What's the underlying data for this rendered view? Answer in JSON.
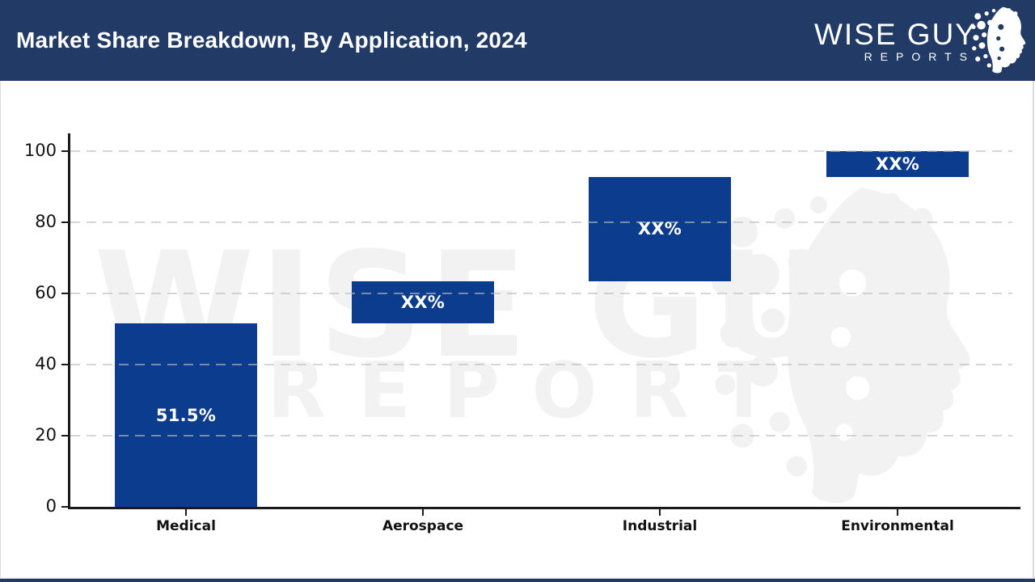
{
  "header": {
    "title": "Market Share Breakdown, By Application, 2024",
    "logo": {
      "brand_line1": "WISE GUY",
      "brand_line2": "REPORTS"
    }
  },
  "watermark": {
    "line1": "WISE GUY",
    "line2": "REPORTS"
  },
  "colors": {
    "header_bg": "#213a66",
    "bar": "#0c3c8d",
    "bar_label": "#ffffff",
    "axis": "#1a1a1a",
    "gridline": "#c4c4c4",
    "watermark": "#f2f2f2"
  },
  "chart_data": {
    "type": "bar",
    "variant": "waterfall",
    "title": "Market Share Breakdown, By Application, 2024",
    "categories": [
      "Medical",
      "Aerospace",
      "Industrial",
      "Environmental"
    ],
    "segments": [
      {
        "category": "Medical",
        "start": 0,
        "end": 51.5,
        "label": "51.5%"
      },
      {
        "category": "Aerospace",
        "start": 51.5,
        "end": 63.5,
        "label": "XX%"
      },
      {
        "category": "Industrial",
        "start": 63.5,
        "end": 92.8,
        "label": "XX%"
      },
      {
        "category": "Environmental",
        "start": 92.8,
        "end": 100,
        "label": "XX%"
      }
    ],
    "ylim": [
      0,
      100
    ],
    "yticks": [
      0,
      20,
      40,
      60,
      80,
      100
    ],
    "xlabel": "",
    "ylabel": "",
    "grid": "horizontal-dashed",
    "legend": null
  }
}
